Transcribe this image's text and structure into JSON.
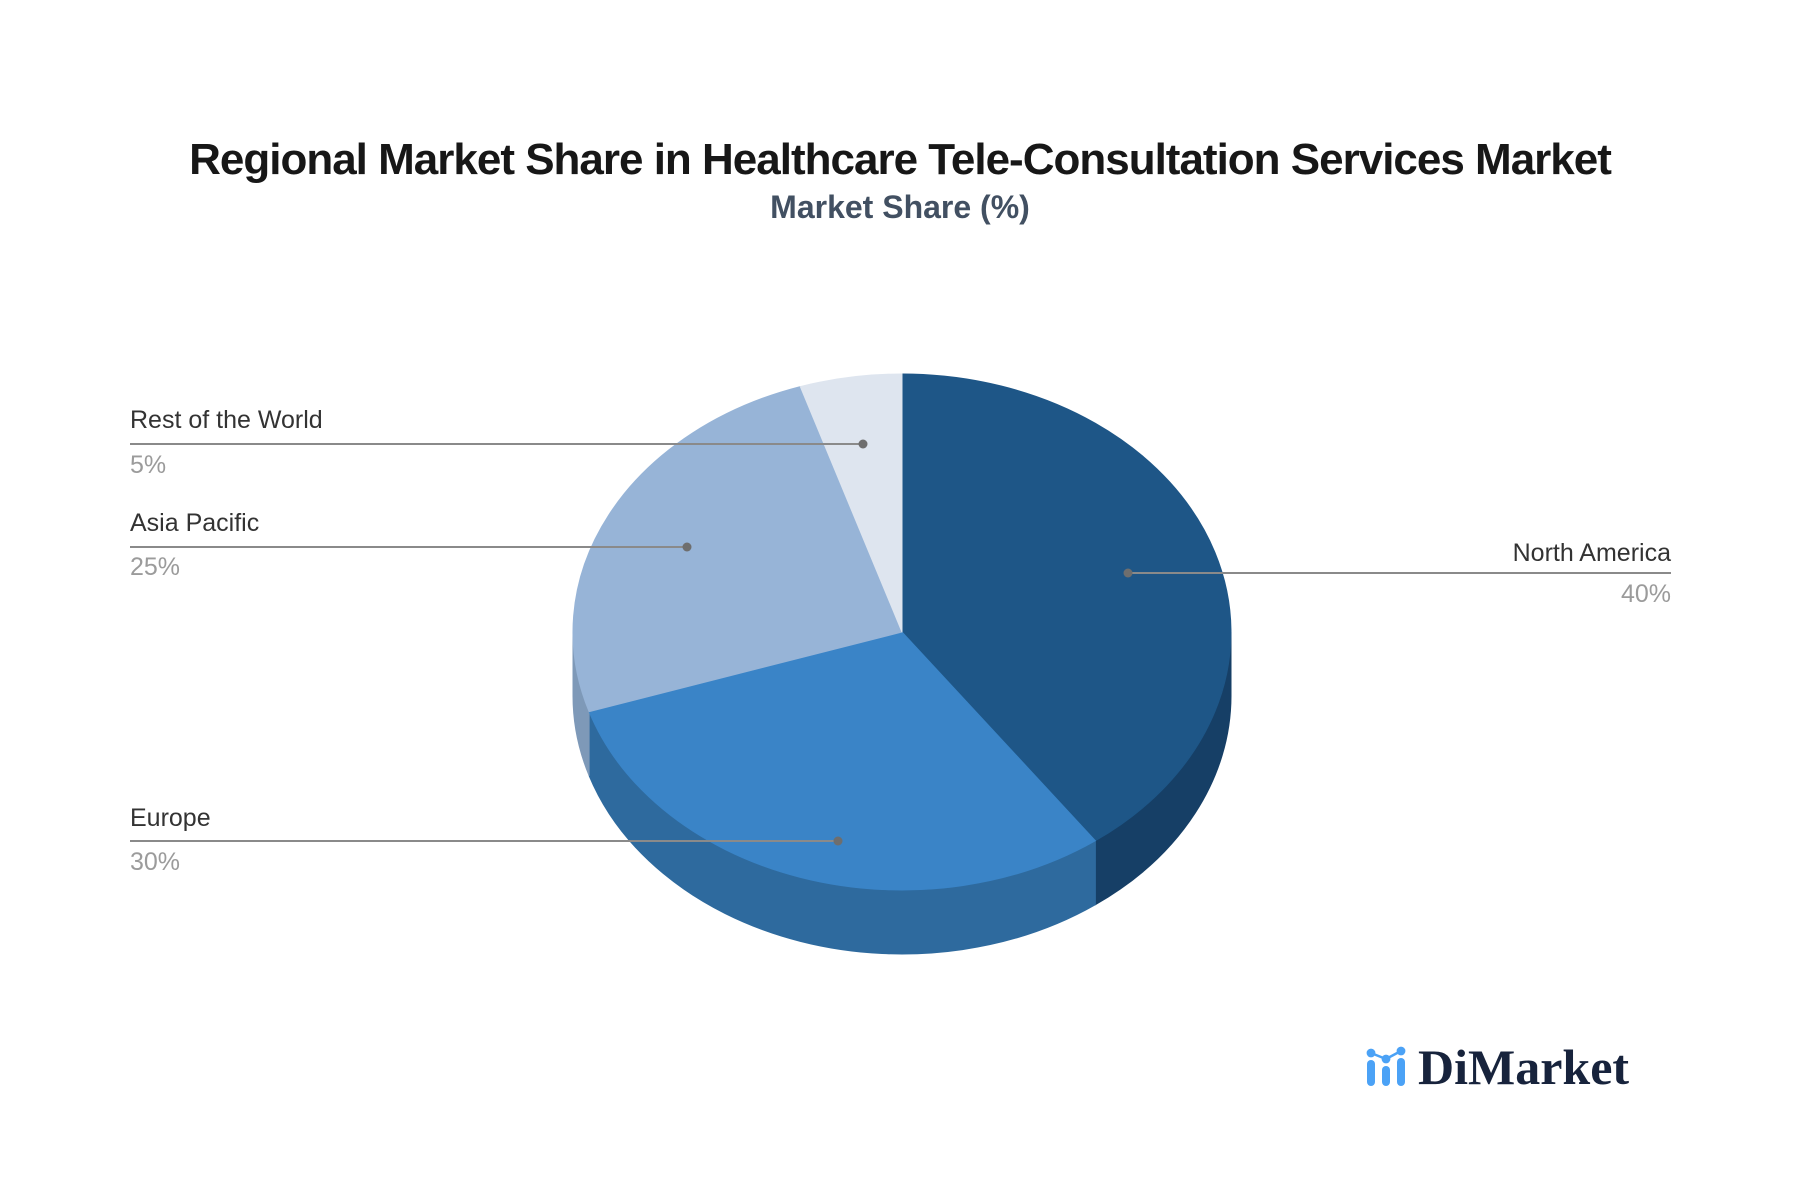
{
  "chart_data": {
    "type": "pie",
    "style": "3d",
    "title": "Regional Market Share in Healthcare Tele-Consultation Services Market",
    "subtitle": "Market Share (%)",
    "unit": "%",
    "start_angle_deg": 0,
    "direction": "clockwise",
    "legend_position": "none",
    "slices": [
      {
        "label": "North America",
        "value": 40,
        "pct_label": "40%",
        "color": "#1E5687",
        "side_color": "#163F66"
      },
      {
        "label": "Europe",
        "value": 30,
        "pct_label": "30%",
        "color": "#3A84C7",
        "side_color": "#2E6A9E"
      },
      {
        "label": "Asia Pacific",
        "value": 25,
        "pct_label": "25%",
        "color": "#97B4D7",
        "side_color": "#7E99B8"
      },
      {
        "label": "Rest of the World",
        "value": 5,
        "pct_label": "5%",
        "color": "#DEE5EF",
        "side_color": "#B8C2CF"
      }
    ]
  },
  "branding": {
    "logo_text": "DiMarket",
    "logo_icon": "bar-chart-icon",
    "logo_text_color": "#17233C",
    "logo_icon_color": "#4BA2F6"
  },
  "colors": {
    "background": "#FFFFFF",
    "title_text": "#171717",
    "subtitle_text": "#425062",
    "label_text": "#333333",
    "value_text": "#9B9B9B",
    "leader_line": "#8A8A8A",
    "leader_dot": "#6E6E6E"
  }
}
